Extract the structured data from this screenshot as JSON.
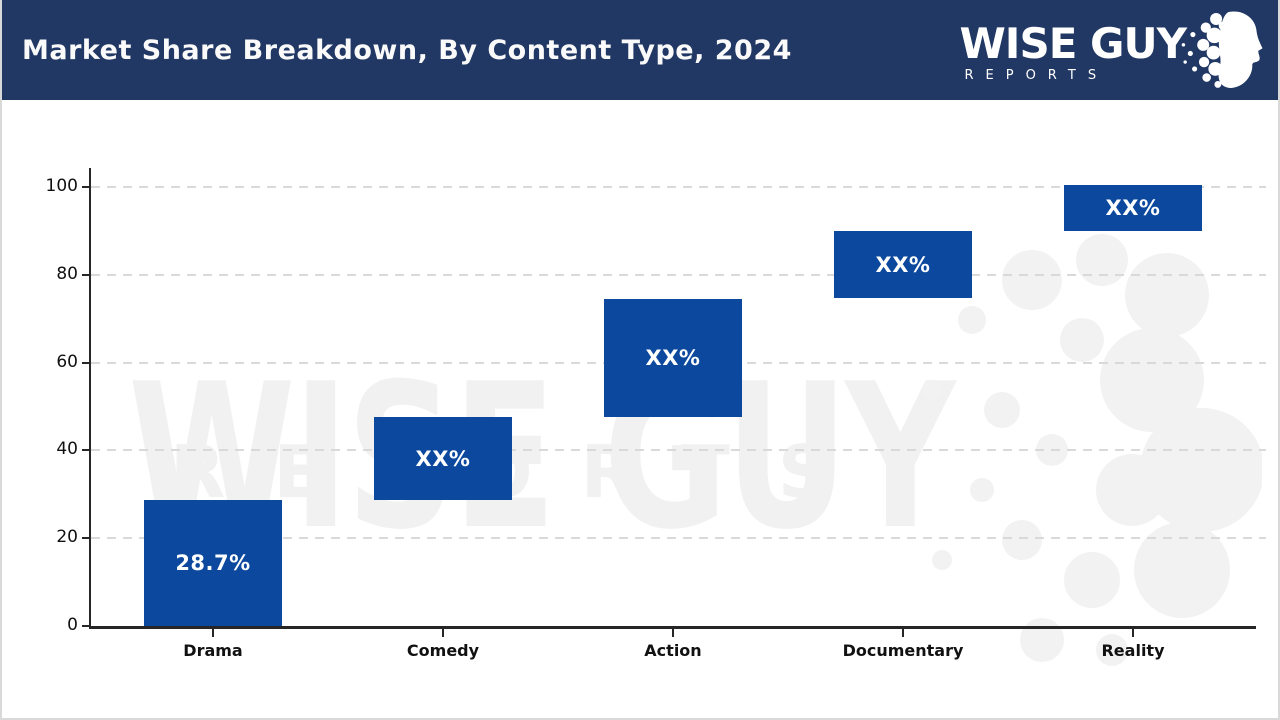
{
  "header": {
    "title": "Market Share Breakdown, By Content Type, 2024",
    "logo": {
      "wordmark": "WISE GUY",
      "subtext": "REPORTS"
    }
  },
  "watermark": {
    "wordmark": "WISE GUY",
    "subtext": "REPORTS"
  },
  "colors": {
    "header_bg": "#213864",
    "bar_fill": "#0b489e",
    "bar_label": "#ffffff",
    "axis": "#262626",
    "tick_text": "#111111",
    "grid": "#d9d9d9",
    "watermark": "#f1f1f2",
    "page_border": "#d9d9d9"
  },
  "chart_data": {
    "type": "bar",
    "variant": "waterfall",
    "title": "Market Share Breakdown, By Content Type, 2024",
    "categories": [
      "Drama",
      "Comedy",
      "Action",
      "Documentary",
      "Reality"
    ],
    "segments": [
      {
        "category": "Drama",
        "start": 0,
        "end": 28.7,
        "label": "28.7%"
      },
      {
        "category": "Comedy",
        "start": 28.7,
        "end": 47.5,
        "label": "XX%"
      },
      {
        "category": "Action",
        "start": 47.5,
        "end": 74.6,
        "label": "XX%"
      },
      {
        "category": "Documentary",
        "start": 74.6,
        "end": 90,
        "label": "XX%"
      },
      {
        "category": "Reality",
        "start": 90,
        "end": 100.5,
        "label": "XX%"
      }
    ],
    "xlabel": "",
    "ylabel": "",
    "ylim": [
      0,
      105
    ],
    "yticks": [
      0,
      20,
      40,
      60,
      80,
      100
    ],
    "grid": "dashed-horizontal",
    "legend": "none"
  }
}
